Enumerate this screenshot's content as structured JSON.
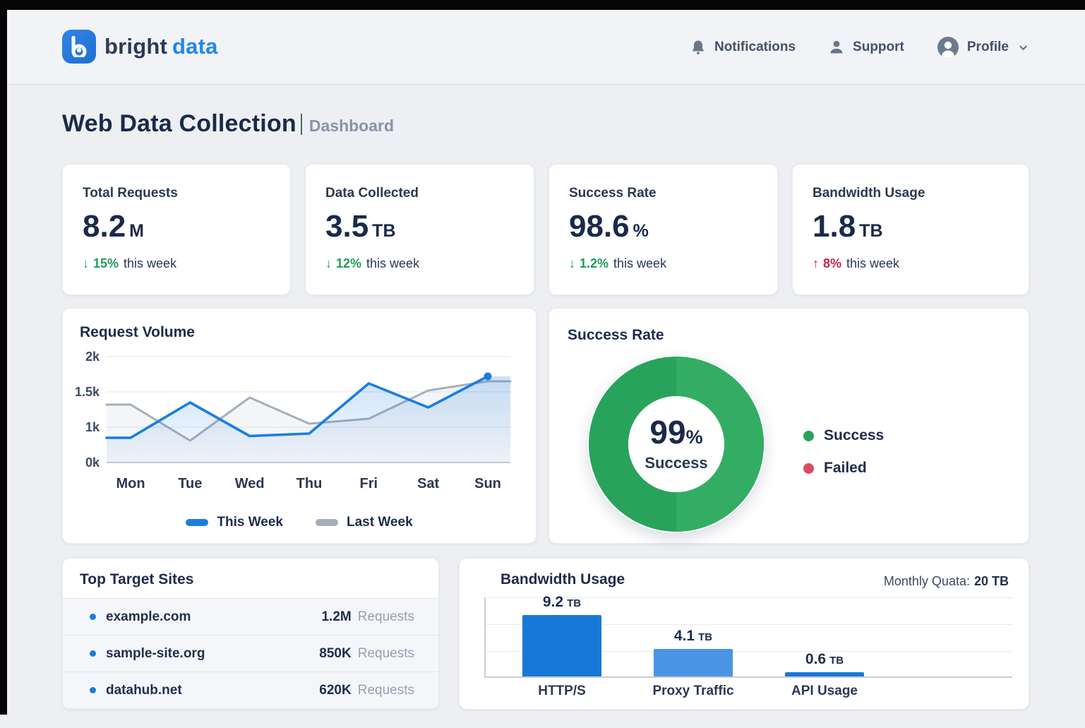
{
  "colors": {
    "accent_blue": "#1a7de0",
    "logo_blue": "#2a7de1",
    "green": "#1f9d55",
    "red": "#c9234a",
    "navy_text": "#1d2c4c",
    "gray_text": "#8a93a6",
    "line_gray": "#a6aebc",
    "bar_blue": "#1878d8",
    "bar_light_blue": "#4a94e6",
    "donut_green": "#28a35c",
    "failed_red": "#d94c63"
  },
  "navbar": {
    "logo_text_primary": "bright",
    "logo_text_secondary": "data",
    "items": [
      {
        "label": "Notifications",
        "icon": "bell-icon"
      },
      {
        "label": "Support",
        "icon": "person-icon"
      },
      {
        "label": "Profile",
        "icon": "avatar-icon"
      }
    ]
  },
  "page": {
    "title": "Web Data Collection",
    "subtitle": "Dashboard"
  },
  "stat_cards": [
    {
      "label": "Total Requests",
      "value": "8.2",
      "unit": "M",
      "arrow": "↓",
      "change": "15%",
      "suffix": "this week",
      "trend": "green"
    },
    {
      "label": "Data Collected",
      "value": "3.5",
      "unit": "TB",
      "arrow": "↓",
      "change": "12%",
      "suffix": "this week",
      "trend": "green"
    },
    {
      "label": "Success Rate",
      "value": "98.6",
      "unit": "%",
      "arrow": "↓",
      "change": "1.2%",
      "suffix": "this week",
      "trend": "green"
    },
    {
      "label": "Bandwidth Usage",
      "value": "1.8",
      "unit": "TB",
      "arrow": "↑",
      "change": "8%",
      "suffix": "this week",
      "trend": "red"
    }
  ],
  "chart_data": [
    {
      "type": "line",
      "title": "Request Volume",
      "categories": [
        "Mon",
        "Tue",
        "Wed",
        "Thu",
        "Fri",
        "Sat",
        "Sun"
      ],
      "series": [
        {
          "name": "This Week",
          "color": "#1a7de0",
          "values": [
            0.7,
            1.35,
            0.75,
            0.82,
            1.62,
            1.28,
            1.72
          ]
        },
        {
          "name": "Last Week",
          "color": "#a6aebc",
          "values": [
            1.32,
            0.62,
            1.42,
            1.05,
            1.12,
            1.52,
            1.65
          ]
        }
      ],
      "unit": "k requests",
      "y_ticks": [
        {
          "label": "2k",
          "value": 2
        },
        {
          "label": "1.5k",
          "value": 1.5
        },
        {
          "label": "1k",
          "value": 1
        },
        {
          "label": "0k",
          "value": 0
        }
      ],
      "ylim": [
        0,
        2
      ],
      "grid": true,
      "legend_position": "bottom"
    },
    {
      "type": "donut",
      "title": "Success Rate",
      "center_value": "99",
      "center_unit": "%",
      "center_label": "Success",
      "slices": [
        {
          "label": "Success",
          "value": 99,
          "color": "#28a35c"
        },
        {
          "label": "Failed",
          "value": 1,
          "color": "#d94c63"
        }
      ],
      "ring_color_left": "#28a35c",
      "ring_color_right": "#33ad63",
      "legend_position": "right"
    },
    {
      "type": "bar",
      "title": "Bandwidth Usage",
      "quota_label": "Monthly Quata:",
      "quota_value": "20 TB",
      "categories": [
        "HTTP/S",
        "Proxy Traffic",
        "API Usage"
      ],
      "values": [
        9.2,
        4.1,
        0.6
      ],
      "value_labels": [
        {
          "num": "9.2",
          "unit": "TB"
        },
        {
          "num": "4.1",
          "unit": "TB"
        },
        {
          "num": "0.6",
          "unit": "TB"
        }
      ],
      "bar_colors": [
        "#1878d8",
        "#4a94e6",
        "#1878d8"
      ],
      "unit": "TB",
      "ylim": [
        0,
        12
      ],
      "grid": true
    }
  ],
  "top_sites": {
    "title": "Top Target Sites",
    "unit_label": "Requests",
    "rows": [
      {
        "site": "example.com",
        "count": "1.2M"
      },
      {
        "site": "sample-site.org",
        "count": "850K"
      },
      {
        "site": "datahub.net",
        "count": "620K"
      }
    ]
  }
}
